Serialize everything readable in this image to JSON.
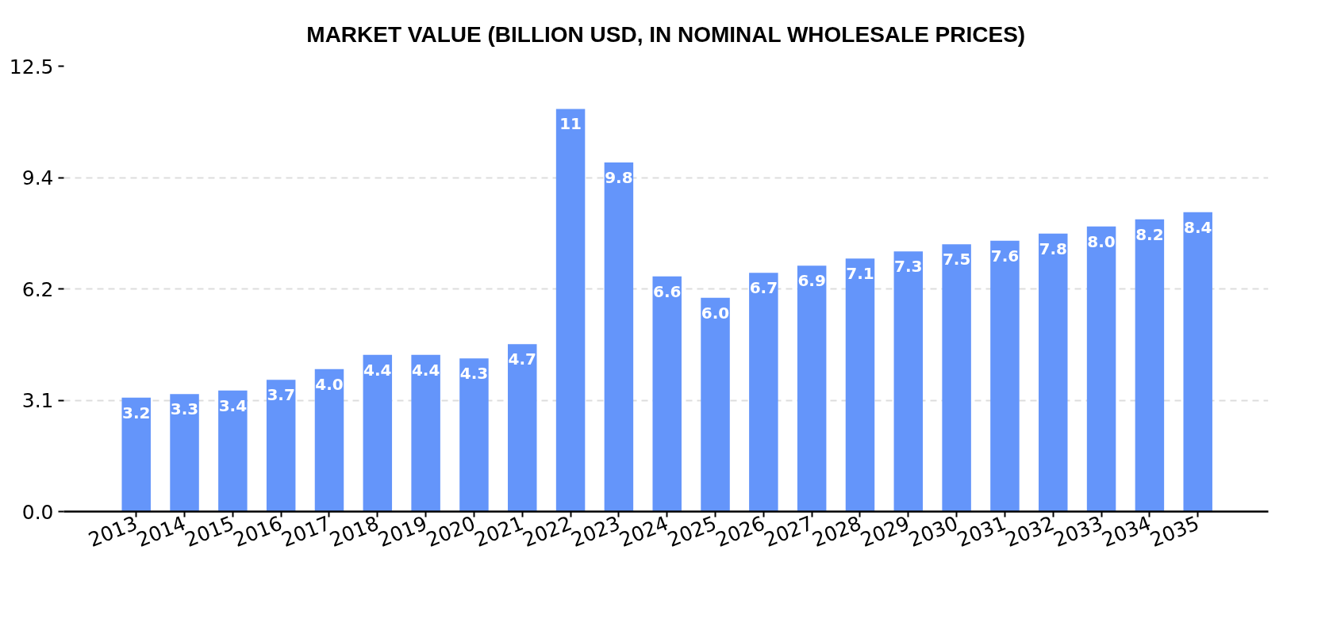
{
  "chart_data": {
    "type": "bar",
    "title": "MARKET VALUE (BILLION USD, IN NOMINAL WHOLESALE PRICES)",
    "categories": [
      "2013",
      "2014",
      "2015",
      "2016",
      "2017",
      "2018",
      "2019",
      "2020",
      "2021",
      "2022",
      "2023",
      "2024",
      "2025",
      "2026",
      "2027",
      "2028",
      "2029",
      "2030",
      "2031",
      "2032",
      "2033",
      "2034",
      "2035"
    ],
    "values": [
      3.2,
      3.3,
      3.4,
      3.7,
      4.0,
      4.4,
      4.4,
      4.3,
      4.7,
      11.3,
      9.8,
      6.6,
      6.0,
      6.7,
      6.9,
      7.1,
      7.3,
      7.5,
      7.6,
      7.8,
      8.0,
      8.2,
      8.4
    ],
    "value_labels": [
      "3.2",
      "3.3",
      "3.4",
      "3.7",
      "4.0",
      "4.4",
      "4.4",
      "4.3",
      "4.7",
      "11",
      "9.8",
      "6.6",
      "6.0",
      "6.7",
      "6.9",
      "7.1",
      "7.3",
      "7.5",
      "7.6",
      "7.8",
      "8.0",
      "8.2",
      "8.4"
    ],
    "color": "#6495fa",
    "ylim": [
      0,
      12.5
    ],
    "yticks": [
      {
        "value": 0,
        "label": "0.0"
      },
      {
        "value": 3.125,
        "label": "3.1"
      },
      {
        "value": 6.25,
        "label": "6.2"
      },
      {
        "value": 9.375,
        "label": "9.4"
      },
      {
        "value": 12.5,
        "label": "12.5"
      }
    ],
    "grid": "y"
  }
}
